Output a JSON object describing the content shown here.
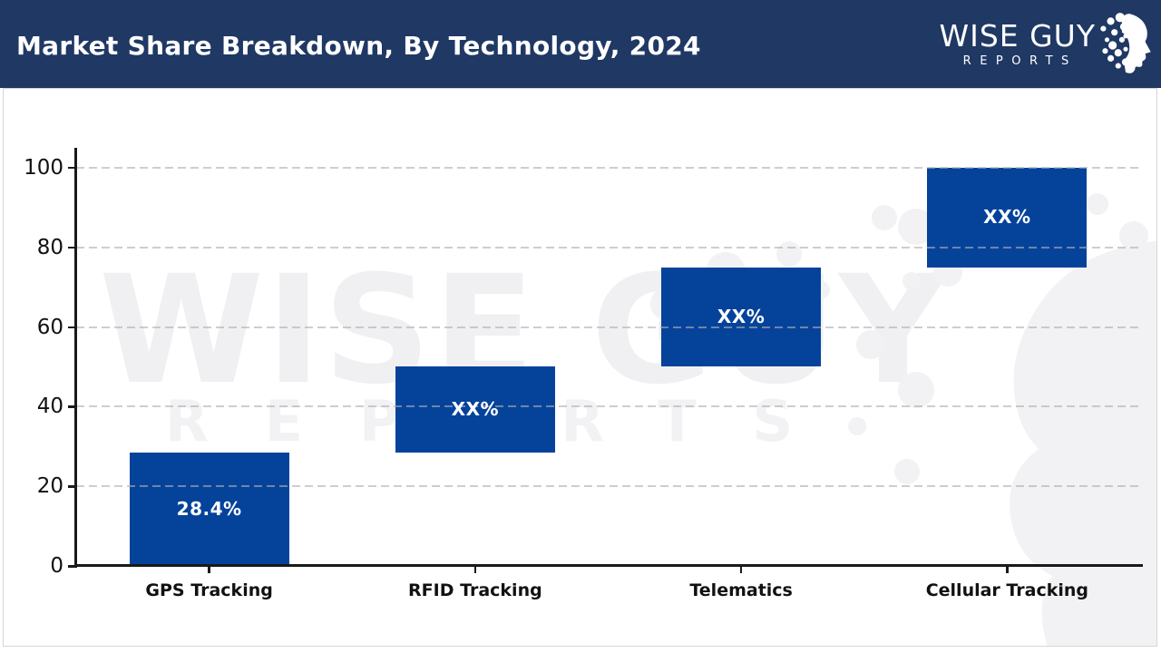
{
  "header": {
    "title": "Market Share Breakdown, By Technology, 2024",
    "bg_color": "#1f3864",
    "logo": {
      "wordmark": "WISE GUY",
      "subtext": "REPORTS"
    }
  },
  "watermark": {
    "wordmark": "WISE GUY",
    "subtext": "REPORTS"
  },
  "chart_data": {
    "type": "bar",
    "subtype": "waterfall",
    "title": "Market Share Breakdown, By Technology, 2024",
    "categories": [
      "GPS Tracking",
      "RFID Tracking",
      "Telematics",
      "Cellular Tracking"
    ],
    "bars": [
      {
        "category": "GPS Tracking",
        "start": 0,
        "end": 28.4,
        "label": "28.4%"
      },
      {
        "category": "RFID Tracking",
        "start": 28.4,
        "end": 50,
        "label": "XX%"
      },
      {
        "category": "Telematics",
        "start": 50,
        "end": 75,
        "label": "XX%"
      },
      {
        "category": "Cellular Tracking",
        "start": 75,
        "end": 100,
        "label": "XX%"
      }
    ],
    "yticks": [
      0,
      20,
      40,
      60,
      80,
      100
    ],
    "ylim": [
      0,
      105
    ],
    "xlabel": "",
    "ylabel": "",
    "grid": "horizontal-dashed",
    "legend": "none",
    "colors": {
      "bar": "#05439b",
      "bar_label": "#ffffff",
      "axis": "#1a1a1a",
      "grid": "#bfbfbf"
    }
  }
}
